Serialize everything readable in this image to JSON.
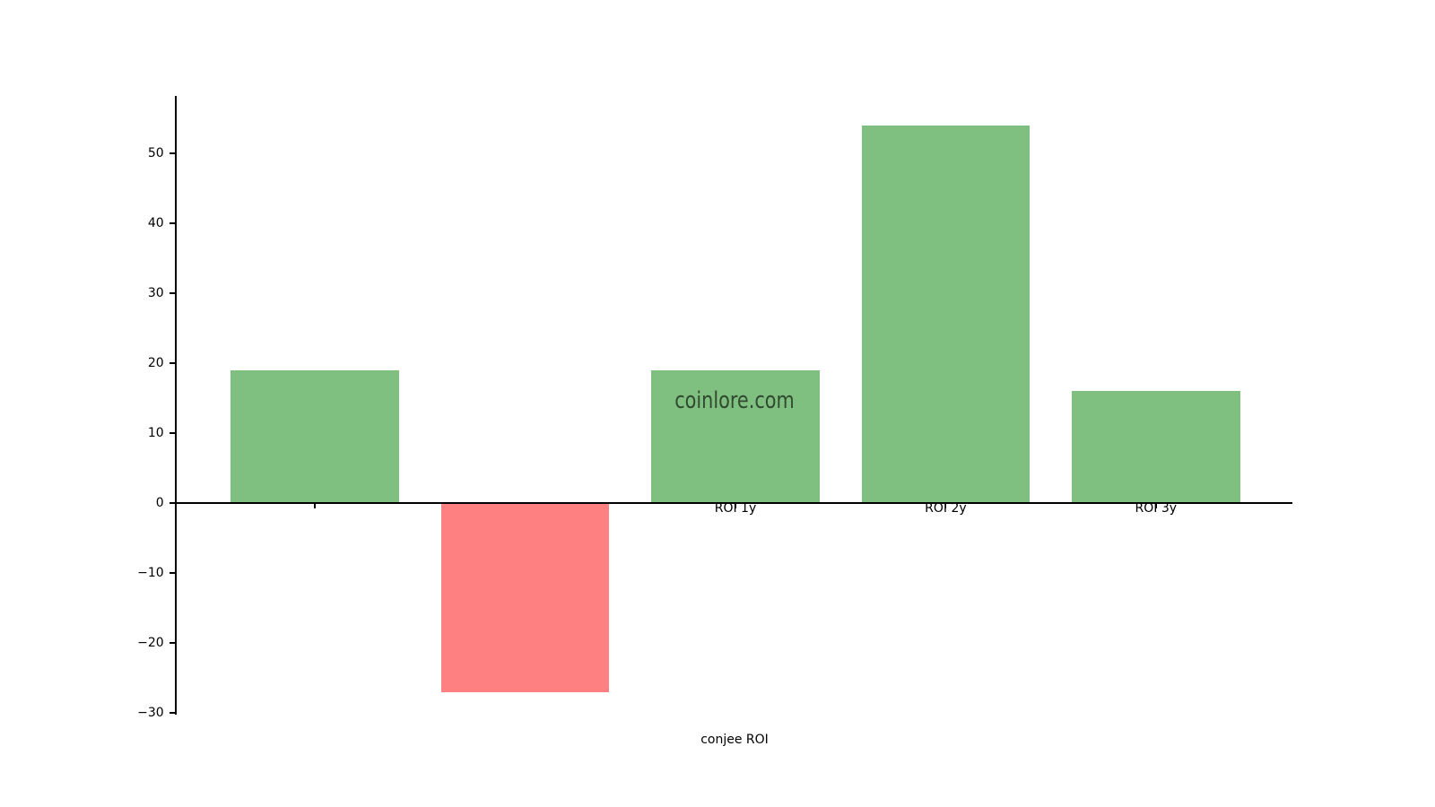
{
  "page": {
    "background": "#ffffff"
  },
  "chart_data": {
    "type": "bar",
    "title": "",
    "xlabel": "conjee ROI",
    "ylabel": "",
    "watermark": "coinlore.com",
    "categories": [
      "",
      "",
      "ROI 1y",
      "ROI 2y",
      "ROI 3y"
    ],
    "values": [
      19,
      -27,
      19,
      54,
      16
    ],
    "bar_colors": [
      "#7fbf7f",
      "#ff8080",
      "#7fbf7f",
      "#7fbf7f",
      "#7fbf7f"
    ],
    "positive_color": "#7fbf7f",
    "negative_color": "#ff8080",
    "ylim": [
      -30.3,
      58.2
    ],
    "yticks": [
      {
        "value": -30,
        "label": "−30"
      },
      {
        "value": -20,
        "label": "−20"
      },
      {
        "value": -10,
        "label": "−10"
      },
      {
        "value": 0,
        "label": "0"
      },
      {
        "value": 10,
        "label": "10"
      },
      {
        "value": 20,
        "label": "20"
      },
      {
        "value": 30,
        "label": "30"
      },
      {
        "value": 40,
        "label": "40"
      },
      {
        "value": 50,
        "label": "50"
      }
    ],
    "grid": false,
    "legend": null,
    "axis_color": "#000000",
    "text_color": "#000000",
    "watermark_color": "rgba(0,0,0,0.62)"
  }
}
